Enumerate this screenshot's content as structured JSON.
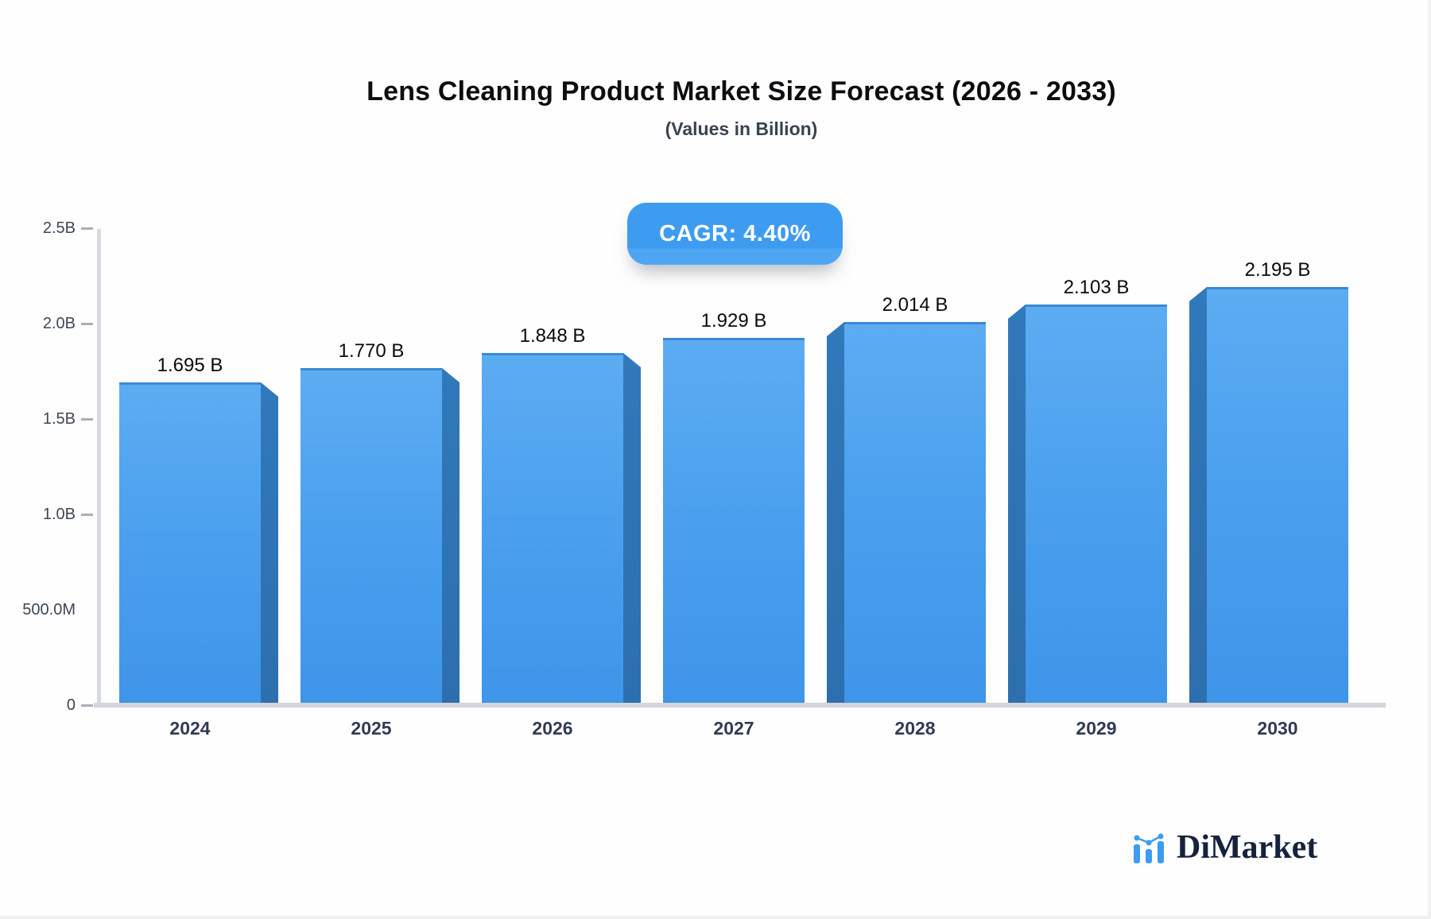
{
  "header": {
    "title": "Lens Cleaning Product Market Size Forecast (2026 - 2033)",
    "subtitle": "(Values in Billion)",
    "cagr_badge": "CAGR: 4.40%"
  },
  "chart_data": {
    "type": "bar",
    "title": "Lens Cleaning Product Market Size Forecast (2026 - 2033)",
    "subtitle": "(Values in Billion)",
    "unit": "Billion",
    "cagr": "4.40%",
    "categories": [
      "2024",
      "2025",
      "2026",
      "2027",
      "2028",
      "2029",
      "2030"
    ],
    "values": [
      1.695,
      1.77,
      1.848,
      1.929,
      2.014,
      2.103,
      2.195
    ],
    "value_labels": [
      "1.695 B",
      "1.770 B",
      "1.848 B",
      "1.929 B",
      "2.014 B",
      "2.103 B",
      "2.195 B"
    ],
    "xlabel": "",
    "ylabel": "",
    "ylim": [
      0,
      2.5
    ],
    "grid": false,
    "legend": false,
    "bar_color": "#4aa0ee",
    "bar_side_color": "#2e74b5",
    "accent_color": "#3e9cf0"
  },
  "y_axis": {
    "ticks": [
      {
        "label": "2.5B",
        "value": 2.5,
        "dash": true
      },
      {
        "label": "2.0B",
        "value": 2.0,
        "dash": true
      },
      {
        "label": "1.5B",
        "value": 1.5,
        "dash": true
      },
      {
        "label": "1.0B",
        "value": 1.0,
        "dash": true
      },
      {
        "label": "500.0M",
        "value": 0.5,
        "dash": false
      },
      {
        "label": "0",
        "value": 0.0,
        "dash": true
      }
    ]
  },
  "footer": {
    "brand": "DiMarket",
    "logo_icon": "bar-chart-logo-icon"
  }
}
